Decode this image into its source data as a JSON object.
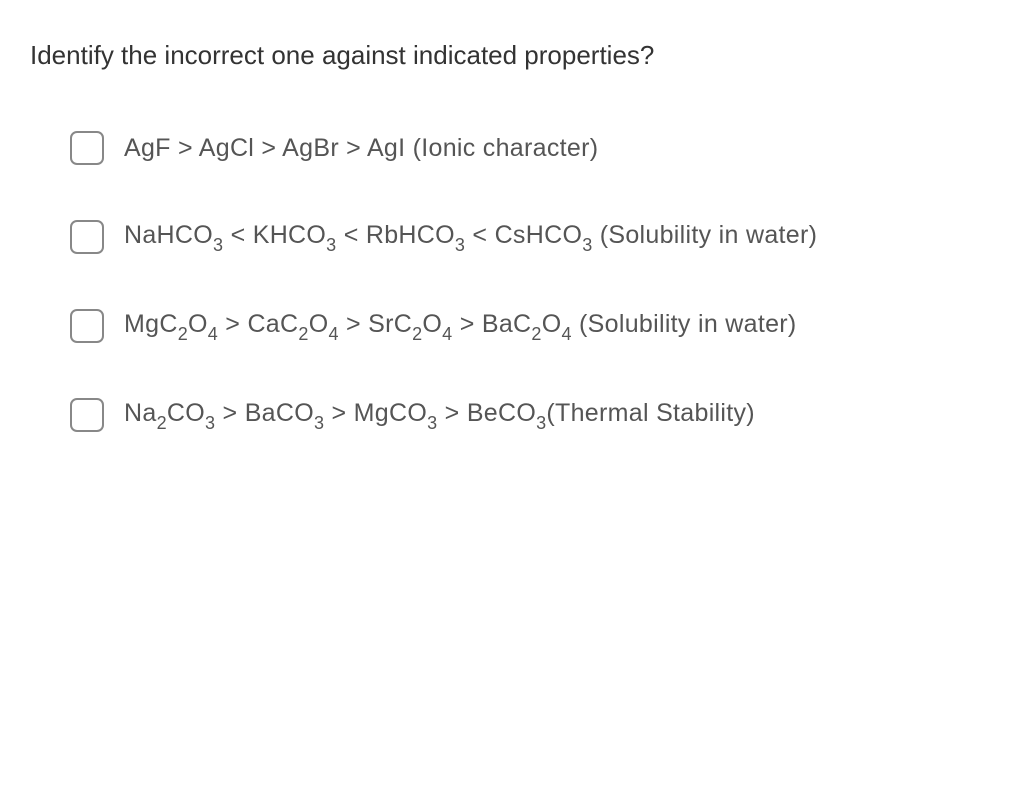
{
  "question": {
    "text": "Identify the incorrect one against indicated properties?",
    "font_size": 26,
    "color": "#333333"
  },
  "options": [
    {
      "plain": "AgF > AgCl > AgBr > AgI (Ionic character)",
      "parts": [
        {
          "t": "AgF > AgCl > AgBr > AgI (Ionic character)"
        }
      ]
    },
    {
      "plain": "NaHCO3 < KHCO3 < RbHCO3 < CsHCO3 (Solubility in water)",
      "parts": [
        {
          "t": "NaHCO"
        },
        {
          "t": "3",
          "sub": true
        },
        {
          "t": " < KHCO"
        },
        {
          "t": "3",
          "sub": true
        },
        {
          "t": " < RbHCO"
        },
        {
          "t": "3",
          "sub": true
        },
        {
          "t": " < CsHCO"
        },
        {
          "t": "3",
          "sub": true
        },
        {
          "t": " (Solubility in water)"
        }
      ]
    },
    {
      "plain": "MgC2O4 > CaC2O4 > SrC2O4 > BaC2O4 (Solubility in water)",
      "parts": [
        {
          "t": "MgC"
        },
        {
          "t": "2",
          "sub": true
        },
        {
          "t": "O"
        },
        {
          "t": "4",
          "sub": true
        },
        {
          "t": " > CaC"
        },
        {
          "t": "2",
          "sub": true
        },
        {
          "t": "O"
        },
        {
          "t": "4",
          "sub": true
        },
        {
          "t": " > SrC"
        },
        {
          "t": "2",
          "sub": true
        },
        {
          "t": "O"
        },
        {
          "t": "4",
          "sub": true
        },
        {
          "t": " > BaC"
        },
        {
          "t": "2",
          "sub": true
        },
        {
          "t": "O"
        },
        {
          "t": "4",
          "sub": true
        },
        {
          "t": " (Solubility in water)"
        }
      ]
    },
    {
      "plain": "Na2CO3 > BaCO3 > MgCO3 > BeCO3 (Thermal Stability)",
      "parts": [
        {
          "t": "Na"
        },
        {
          "t": "2",
          "sub": true
        },
        {
          "t": "CO"
        },
        {
          "t": "3",
          "sub": true
        },
        {
          "t": " > BaCO"
        },
        {
          "t": "3",
          "sub": true
        },
        {
          "t": " > MgCO"
        },
        {
          "t": "3",
          "sub": true
        },
        {
          "t": " > BeCO"
        },
        {
          "t": "3",
          "sub": true
        },
        {
          "t": "(Thermal Stability)"
        }
      ]
    }
  ],
  "styling": {
    "background_color": "#ffffff",
    "option_font_size": 25,
    "option_color": "#555555",
    "checkbox_border_color": "#888888",
    "checkbox_border_radius": 7,
    "checkbox_size": 30,
    "row_spacing": 55
  }
}
